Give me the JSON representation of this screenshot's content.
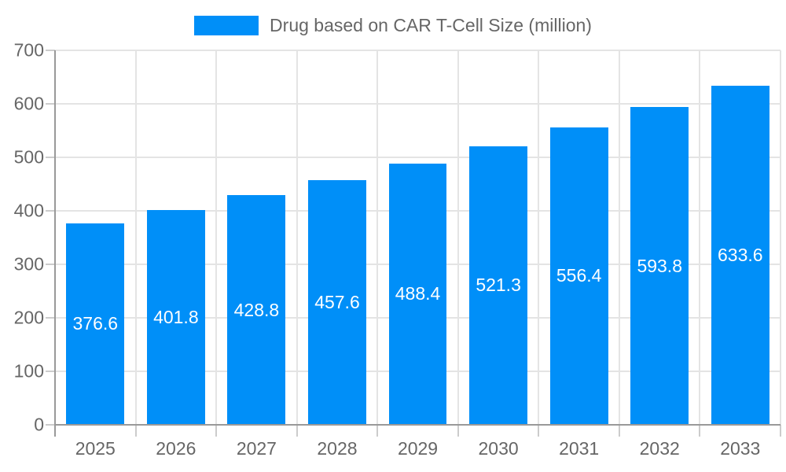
{
  "chart_data": {
    "type": "bar",
    "title": "Drug based on CAR T-Cell Size (million)",
    "categories": [
      "2025",
      "2026",
      "2027",
      "2028",
      "2029",
      "2030",
      "2031",
      "2032",
      "2033"
    ],
    "values": [
      376.6,
      401.8,
      428.8,
      457.6,
      488.4,
      521.3,
      556.4,
      593.8,
      633.6
    ],
    "value_labels": [
      "376.6",
      "401.8",
      "428.8",
      "457.6",
      "488.4",
      "521.3",
      "556.4",
      "593.8",
      "633.6"
    ],
    "xlabel": "",
    "ylabel": "",
    "ylim": [
      0,
      700
    ],
    "yticks": [
      0,
      100,
      200,
      300,
      400,
      500,
      600,
      700
    ],
    "grid": true,
    "legend_position": "top-center",
    "value_label_position": "inside-center",
    "colors": {
      "bar": "#008ff8",
      "value_text": "#ffffff",
      "grid": "#e4e4e4",
      "axis": "#999999",
      "tick": "#cccccc",
      "text": "#666666",
      "background": "#ffffff"
    }
  }
}
